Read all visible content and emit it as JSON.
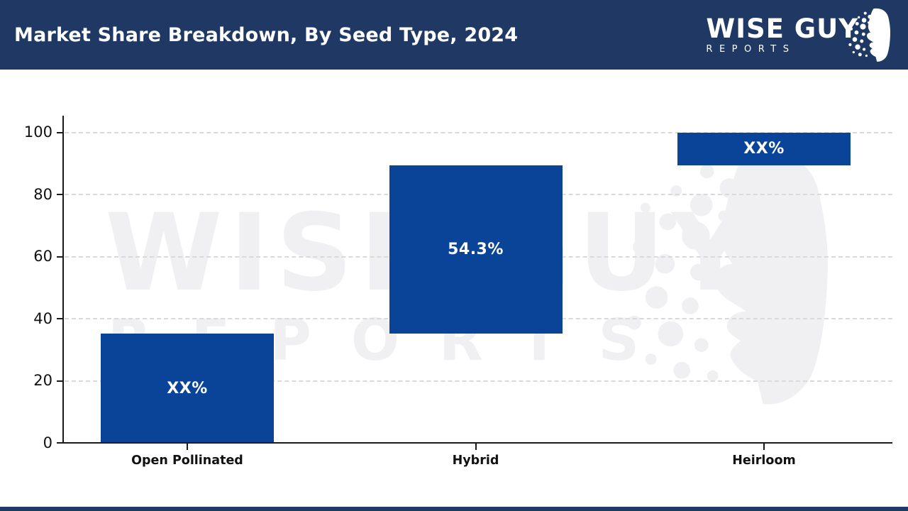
{
  "header": {
    "title": "Market Share Breakdown, By Seed Type, 2024",
    "logo": {
      "line1": "WISE GUY",
      "line2": "REPORTS"
    }
  },
  "watermark": {
    "line1": "WISE GUY",
    "line2": "REPORTS"
  },
  "colors": {
    "header_navy": "#203864",
    "bar_blue": "#0a4499",
    "gridline": "#d9d9d9",
    "axis": "#1a1a1a",
    "watermark_gray": "#f0f0f2",
    "bar_label_white": "#ffffff"
  },
  "chart_data": {
    "type": "bar",
    "subtype": "waterfall",
    "title": "Market Share Breakdown, By Seed Type, 2024",
    "categories": [
      "Open Pollinated",
      "Hybrid",
      "Heirloom"
    ],
    "segments": [
      {
        "category": "Open Pollinated",
        "start": 0,
        "end": 35.1,
        "label": "XX%"
      },
      {
        "category": "Hybrid",
        "start": 35.1,
        "end": 89.4,
        "label": "54.3%"
      },
      {
        "category": "Heirloom",
        "start": 89.4,
        "end": 100,
        "label": "XX%"
      }
    ],
    "yticks": [
      0,
      20,
      40,
      60,
      80,
      100
    ],
    "ylim": [
      0,
      100
    ],
    "xlabel": "",
    "ylabel": "",
    "grid": "horizontal-dashed",
    "legend": "none"
  }
}
